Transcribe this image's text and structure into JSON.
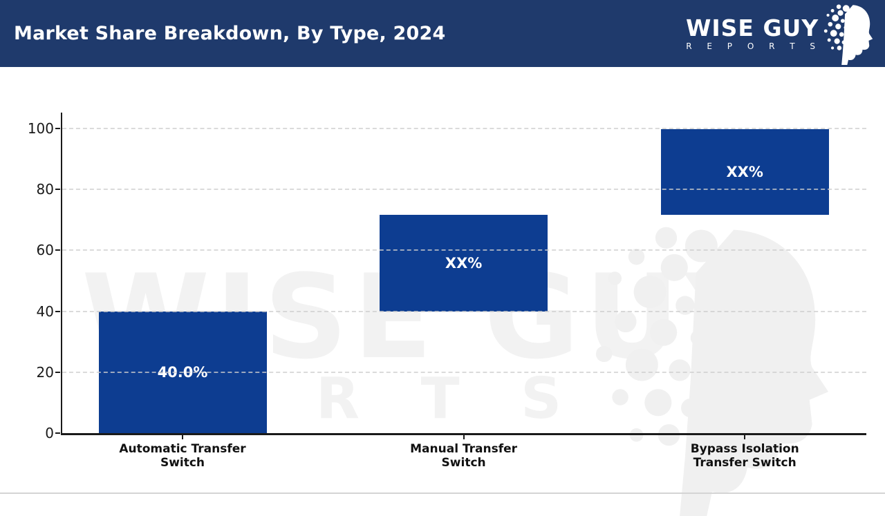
{
  "header": {
    "title": "Market Share Breakdown, By Type, 2024",
    "bg_color": "#1f3a6c",
    "logo": {
      "line1": "WISE GUY",
      "line2": "R E P O R T S"
    }
  },
  "watermark": {
    "line1": "WISE GUY",
    "line2": "P O R T S"
  },
  "chart_data": {
    "type": "bar",
    "subtype": "waterfall",
    "title": "Market Share Breakdown, By Type, 2024",
    "categories": [
      [
        "Automatic Transfer",
        "Switch"
      ],
      [
        "Manual Transfer",
        "Switch"
      ],
      [
        "Bypass Isolation",
        "Transfer Switch"
      ]
    ],
    "segments": [
      {
        "category": "Automatic Transfer Switch",
        "start": 0,
        "end": 40,
        "label": "40.0%"
      },
      {
        "category": "Manual Transfer Switch",
        "start": 40,
        "end": 71.7,
        "label": "XX%"
      },
      {
        "category": "Bypass Isolation Transfer Switch",
        "start": 71.7,
        "end": 99.8,
        "label": "XX%"
      }
    ],
    "xlabel": "",
    "ylabel": "",
    "ylim": [
      0,
      100
    ],
    "yticks": [
      0,
      20,
      40,
      60,
      80,
      100
    ],
    "grid": "horizontal-dashed",
    "legend": "none",
    "bar_color": "#0d3d91",
    "bar_label_color": "#ffffff",
    "axis_color": "#1a1a1a",
    "gridline_color": "#d9d9d9"
  }
}
